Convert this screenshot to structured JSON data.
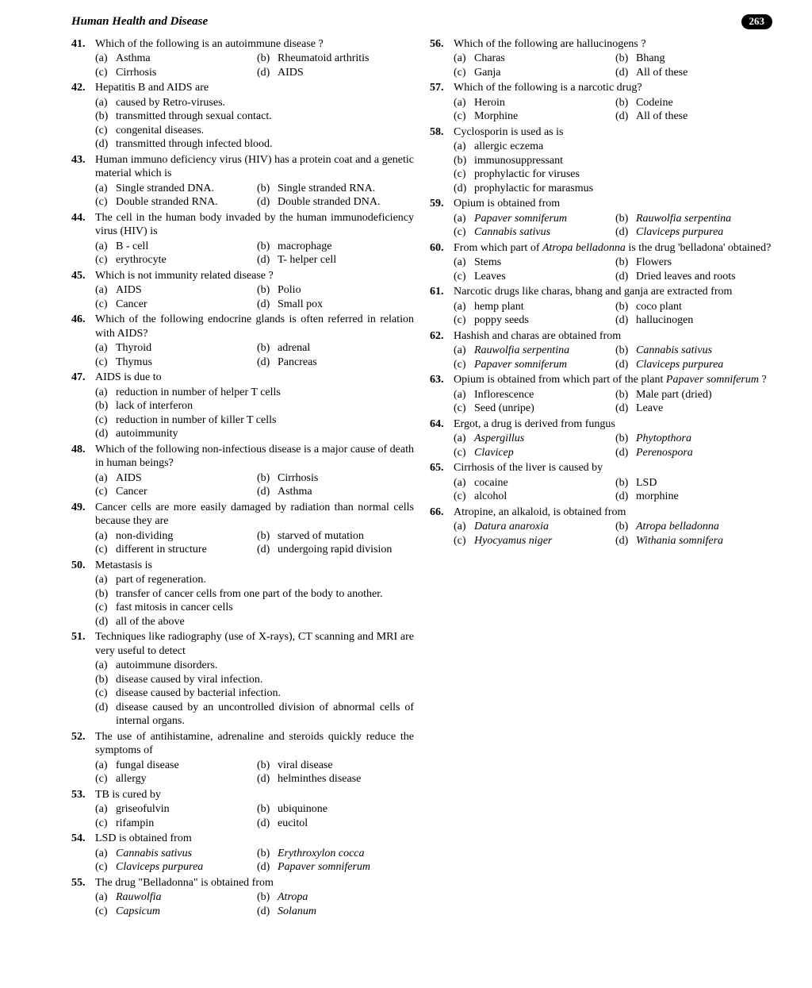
{
  "header": {
    "chapter": "Human Health and Disease",
    "page": "263"
  },
  "letters": [
    "(a)",
    "(b)",
    "(c)",
    "(d)"
  ],
  "questions": [
    {
      "n": "41.",
      "stem": "Which of the following is an autoimmune disease ?",
      "layout": "2col",
      "opts": [
        "Asthma",
        "Rheumatoid arthritis",
        "Cirrhosis",
        "AIDS"
      ]
    },
    {
      "n": "42.",
      "stem": "Hepatitis B and AIDS are",
      "layout": "1col",
      "opts": [
        "caused by Retro-viruses.",
        "transmitted through sexual contact.",
        "congenital diseases.",
        "transmitted through infected blood."
      ]
    },
    {
      "n": "43.",
      "stem": "Human immuno deficiency virus (HIV) has a protein coat and a genetic material which is",
      "layout": "2col",
      "opts": [
        "Single stranded DNA.",
        "Single stranded RNA.",
        "Double stranded RNA.",
        "Double stranded DNA."
      ]
    },
    {
      "n": "44.",
      "stem": "The cell in the human body invaded by the human immunodeficiency virus (HIV) is",
      "layout": "2col",
      "opts": [
        "B - cell",
        "macrophage",
        "erythrocyte",
        "T- helper cell"
      ]
    },
    {
      "n": "45.",
      "stem": "Which is not immunity related disease ?",
      "layout": "2col",
      "opts": [
        "AIDS",
        "Polio",
        "Cancer",
        "Small pox"
      ]
    },
    {
      "n": "46.",
      "stem": "Which of the following endocrine glands is often referred in relation with AIDS?",
      "layout": "2col",
      "opts": [
        "Thyroid",
        "adrenal",
        "Thymus",
        "Pancreas"
      ]
    },
    {
      "n": "47.",
      "stem": "AIDS is due to",
      "layout": "1col",
      "opts": [
        "reduction in number of helper T cells",
        "lack of interferon",
        "reduction in number of killer T cells",
        "autoimmunity"
      ]
    },
    {
      "n": "48.",
      "stem": "Which of the following non-infectious disease is a major cause of death in human beings?",
      "layout": "2col",
      "opts": [
        "AIDS",
        "Cirrhosis",
        "Cancer",
        "Asthma"
      ]
    },
    {
      "n": "49.",
      "stem": "Cancer cells are more easily damaged by radiation than normal cells because they are",
      "layout": "2col",
      "opts": [
        "non-dividing",
        "starved of mutation",
        "different in structure",
        "undergoing rapid division"
      ]
    },
    {
      "n": "50.",
      "stem": "Metastasis is",
      "layout": "1col",
      "opts": [
        "part of regeneration.",
        "transfer of cancer cells from one part of the body to another.",
        "fast mitosis in cancer cells",
        "all of the above"
      ]
    },
    {
      "n": "51.",
      "stem": "Techniques like radiography (use of X-rays), CT scanning and MRI are very useful to detect",
      "layout": "1col",
      "opts": [
        "autoimmune disorders.",
        "disease caused by viral infection.",
        "disease caused by bacterial infection.",
        "disease caused by an uncontrolled division of abnormal cells of internal organs."
      ]
    },
    {
      "n": "52.",
      "stem": "The use of antihistamine, adrenaline and steroids quickly reduce the symptoms of",
      "layout": "2col",
      "opts": [
        "fungal disease",
        "viral disease",
        "allergy",
        "helminthes disease"
      ]
    },
    {
      "n": "53.",
      "stem": "TB is cured by",
      "layout": "2col",
      "opts": [
        "griseofulvin",
        "ubiquinone",
        "rifampin",
        "eucitol"
      ]
    },
    {
      "n": "54.",
      "stem": "LSD is obtained from",
      "layout": "2col",
      "italic": [
        0,
        1,
        2,
        3
      ],
      "opts": [
        "Cannabis sativus",
        "Erythroxylon cocca",
        "Claviceps purpurea",
        "Papaver somniferum"
      ]
    },
    {
      "n": "55.",
      "stem": "The drug \"Belladonna\" is obtained from",
      "layout": "2col",
      "italic": [
        0,
        1,
        2,
        3
      ],
      "opts": [
        "Rauwolfia",
        "Atropa",
        "Capsicum",
        "Solanum"
      ]
    },
    {
      "n": "56.",
      "stem": "Which of the following are hallucinogens ?",
      "layout": "2col",
      "opts": [
        "Charas",
        "Bhang",
        "Ganja",
        "All of these"
      ]
    },
    {
      "n": "57.",
      "stem": "Which of the following is a narcotic drug?",
      "layout": "2col",
      "opts": [
        "Heroin",
        "Codeine",
        "Morphine",
        "All of these"
      ]
    },
    {
      "n": "58.",
      "stem": "Cyclosporin is used as is",
      "layout": "1col",
      "opts": [
        "allergic eczema",
        "immunosuppressant",
        "prophylactic for viruses",
        "prophylactic for marasmus"
      ]
    },
    {
      "n": "59.",
      "stem": "Opium is obtained from",
      "layout": "2col",
      "italic": [
        0,
        1,
        2,
        3
      ],
      "opts": [
        "Papaver somniferum",
        "Rauwolfia serpentina",
        "Cannabis sativus",
        "Claviceps purpurea"
      ]
    },
    {
      "n": "60.",
      "stem": "From which part of <i>Atropa belladonna</i> is the drug 'belladona' obtained?",
      "layout": "2col",
      "opts": [
        "Stems",
        "Flowers",
        "Leaves",
        "Dried leaves and roots"
      ]
    },
    {
      "n": "61.",
      "stem": "Narcotic drugs like charas, bhang and ganja are extracted from",
      "layout": "2col",
      "opts": [
        "hemp plant",
        "coco plant",
        "poppy seeds",
        "hallucinogen"
      ]
    },
    {
      "n": "62.",
      "stem": "Hashish and charas are obtained from",
      "layout": "2col",
      "italic": [
        0,
        1,
        2,
        3
      ],
      "opts": [
        "Rauwolfia serpentina",
        "Cannabis sativus",
        "Papaver somniferum",
        "Claviceps purpurea"
      ]
    },
    {
      "n": "63.",
      "stem": "Opium is obtained from which part of the plant <i>Papaver somniferum</i> ?",
      "layout": "2col",
      "opts": [
        "Inflorescence",
        "Male part (dried)",
        "Seed (unripe)",
        "Leave"
      ]
    },
    {
      "n": "64.",
      "stem": "Ergot, a drug is derived from fungus",
      "layout": "2col",
      "italic": [
        0,
        1,
        2,
        3
      ],
      "opts": [
        "Aspergillus",
        "Phytopthora",
        "Clavicep",
        "Perenospora"
      ]
    },
    {
      "n": "65.",
      "stem": "Cirrhosis of the liver is caused by",
      "layout": "2col",
      "opts": [
        "cocaine",
        "LSD",
        "alcohol",
        "morphine"
      ]
    },
    {
      "n": "66.",
      "stem": "Atropine, an alkaloid, is obtained from",
      "layout": "2col",
      "italic": [
        0,
        1,
        2,
        3
      ],
      "opts": [
        "Datura anaroxia",
        "Atropa belladonna",
        "Hyocyamus niger",
        "Withania somnifera"
      ]
    }
  ]
}
